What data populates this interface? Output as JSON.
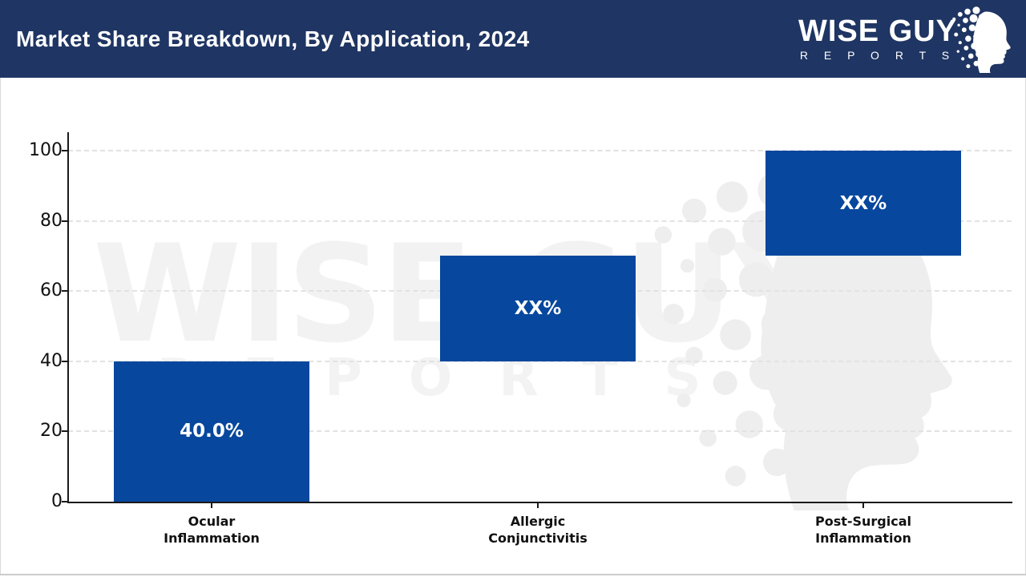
{
  "header": {
    "title": "Market Share Breakdown, By Application, 2024",
    "logo": {
      "line1": "WISE GUY",
      "line2": "R E P O R T S"
    }
  },
  "watermark": {
    "line1": "WISE GUY",
    "line2": "REPORTS"
  },
  "chart_data": {
    "type": "bar",
    "subtype": "floating-segment (waterfall-style market share)",
    "title": "Market Share Breakdown, By Application, 2024",
    "categories": [
      [
        "Ocular",
        "Inflammation"
      ],
      [
        "Allergic",
        "Conjunctivitis"
      ],
      [
        "Post-Surgical",
        "Inflammation"
      ]
    ],
    "series": [
      {
        "name": "Ocular Inflammation",
        "start": 0,
        "end": 40,
        "label": "40.0%"
      },
      {
        "name": "Allergic Conjunctivitis",
        "start": 40,
        "end": 70,
        "label": "XX%"
      },
      {
        "name": "Post-Surgical Inflammation",
        "start": 70,
        "end": 100,
        "label": "XX%"
      }
    ],
    "yticks": [
      0,
      20,
      40,
      60,
      80,
      100
    ],
    "ylim": [
      0,
      105
    ],
    "xlabel": "",
    "ylabel": "",
    "grid": "horizontal-dashed",
    "legend": "none",
    "bar_color": "#07479e",
    "bar_label_color": "#ffffff"
  },
  "colors": {
    "header_bg": "#1f3563",
    "bar": "#07479e",
    "axis": "#1a1a1a",
    "gridline": "#e2e2e2",
    "watermark": "#f2f2f2",
    "bottom_rule": "#cccccc"
  }
}
